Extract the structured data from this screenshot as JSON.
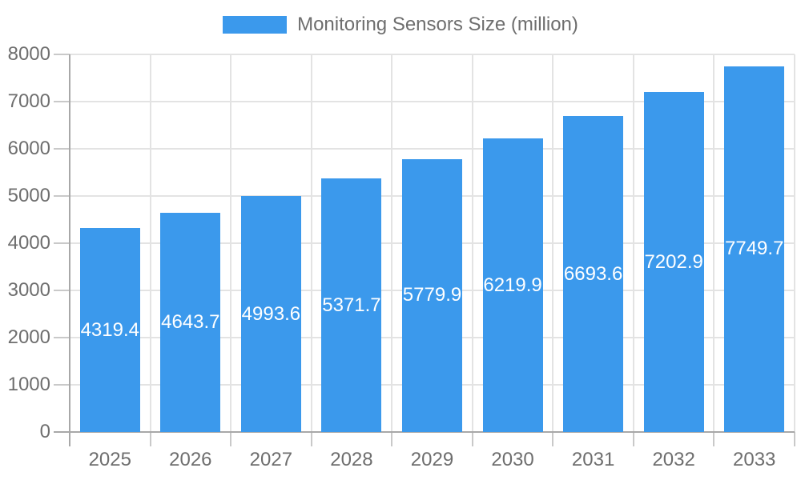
{
  "legend": {
    "items": [
      {
        "label": "Monitoring Sensors Size (million)",
        "swatch_color": "#3B99EC"
      }
    ]
  },
  "chart_data": {
    "type": "bar",
    "title": "",
    "categories": [
      "2025",
      "2026",
      "2027",
      "2028",
      "2029",
      "2030",
      "2031",
      "2032",
      "2033"
    ],
    "series": [
      {
        "name": "Monitoring Sensors Size (million)",
        "values": [
          4319.4,
          4643.7,
          4993.6,
          5371.7,
          5779.9,
          6219.9,
          6693.6,
          7202.9,
          7749.7
        ]
      }
    ],
    "xlabel": "",
    "ylabel": "",
    "ylim": [
      0,
      8000
    ],
    "ytick_step": 1000,
    "yticks": [
      "0",
      "1000",
      "2000",
      "3000",
      "4000",
      "5000",
      "6000",
      "7000",
      "8000"
    ],
    "grid": "on",
    "legend_position": "top-center",
    "value_labels": "inside-middle-white"
  },
  "colors": {
    "bar": "#3B99EC",
    "background": "#ffffff",
    "grid_line": "#e3e3e3",
    "axis_line": "#a8a8a8",
    "tick_mark": "#c9c9c9",
    "axis_text": "#6e6e6e",
    "value_label_text": "#ffffff"
  }
}
